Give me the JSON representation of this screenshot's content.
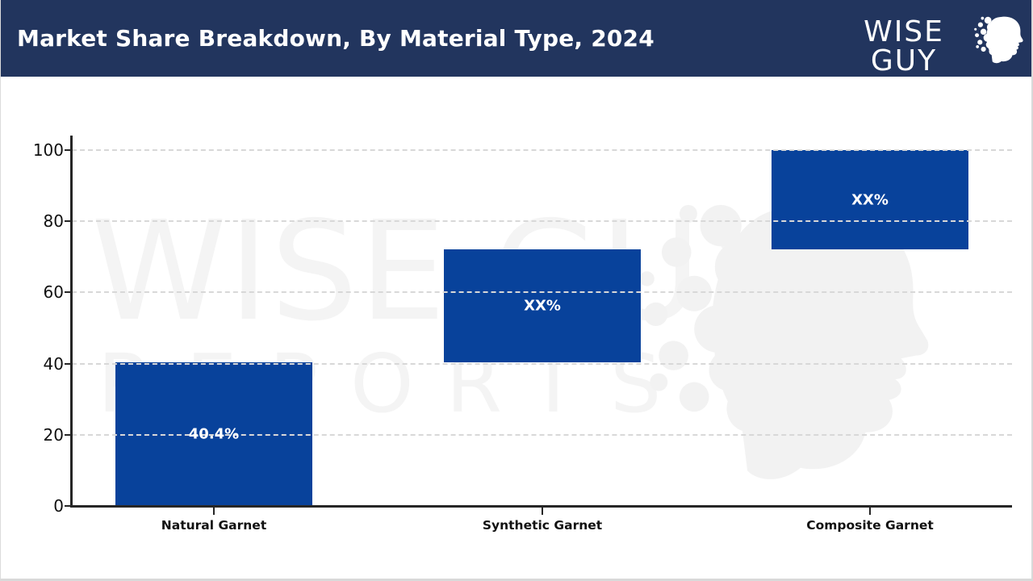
{
  "header": {
    "title": "Market Share Breakdown, By Material Type, 2024",
    "logo": {
      "brand_line1": "WISE GUY",
      "brand_line2": "REPORTS"
    }
  },
  "watermark": {
    "line1": "WISE GUY",
    "line2": "REPORTS"
  },
  "chart_data": {
    "type": "bar",
    "subtype": "waterfall",
    "title": "Market Share Breakdown, By Material Type, 2024",
    "categories": [
      "Natural Garnet",
      "Synthetic Garnet",
      "Composite Garnet"
    ],
    "segments": [
      {
        "category": "Natural Garnet",
        "start": 0,
        "end": 40.4,
        "label": "40.4%"
      },
      {
        "category": "Synthetic Garnet",
        "start": 40.4,
        "end": 72,
        "label": "XX%"
      },
      {
        "category": "Composite Garnet",
        "start": 72,
        "end": 100,
        "label": "XX%"
      }
    ],
    "xlabel": "",
    "ylabel": "",
    "yticks": [
      0,
      20,
      40,
      60,
      80,
      100
    ],
    "ylim": [
      0,
      105
    ],
    "legend": "none",
    "grid": "horizontal-dashed",
    "bar_color": "#08429b",
    "bar_label_color": "#ffffff"
  },
  "colors": {
    "header_bg": "#22355e",
    "bar": "#08429b",
    "grid": "#d8d8d8",
    "axis": "#262626",
    "tick_label": "#111111",
    "watermark": "#f4f4f4",
    "page_border": "#d9d9d9"
  }
}
